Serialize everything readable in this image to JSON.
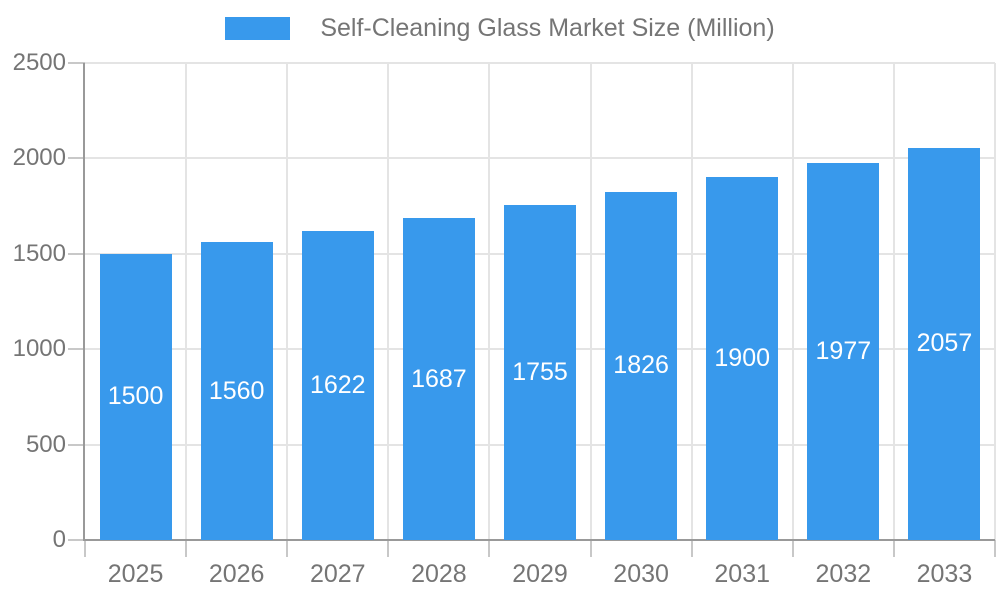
{
  "legend": {
    "label": "Self-Cleaning Glass Market Size (Million)",
    "swatch_color": "#3899EC"
  },
  "chart_data": {
    "type": "bar",
    "title": "Self-Cleaning Glass Market Size (Million)",
    "categories": [
      "2025",
      "2026",
      "2027",
      "2028",
      "2029",
      "2030",
      "2031",
      "2032",
      "2033"
    ],
    "values": [
      1500,
      1560,
      1622,
      1687,
      1755,
      1826,
      1900,
      1977,
      2057
    ],
    "series_name": "Self-Cleaning Glass Market Size (Million)",
    "xlabel": "",
    "ylabel": "",
    "ylim": [
      0,
      2500
    ],
    "yticks": [
      0,
      500,
      1000,
      1500,
      2000,
      2500
    ],
    "grid": true,
    "legend_position": "top-center",
    "bar_color": "#3899EC",
    "bar_label_color": "#FFFFFF",
    "axis_text_color": "#757575",
    "gridline_color": "#E4E4E4",
    "axis_line_color": "#999999",
    "tick_color": "#C8C8C8",
    "background_color": "#FFFFFF"
  }
}
